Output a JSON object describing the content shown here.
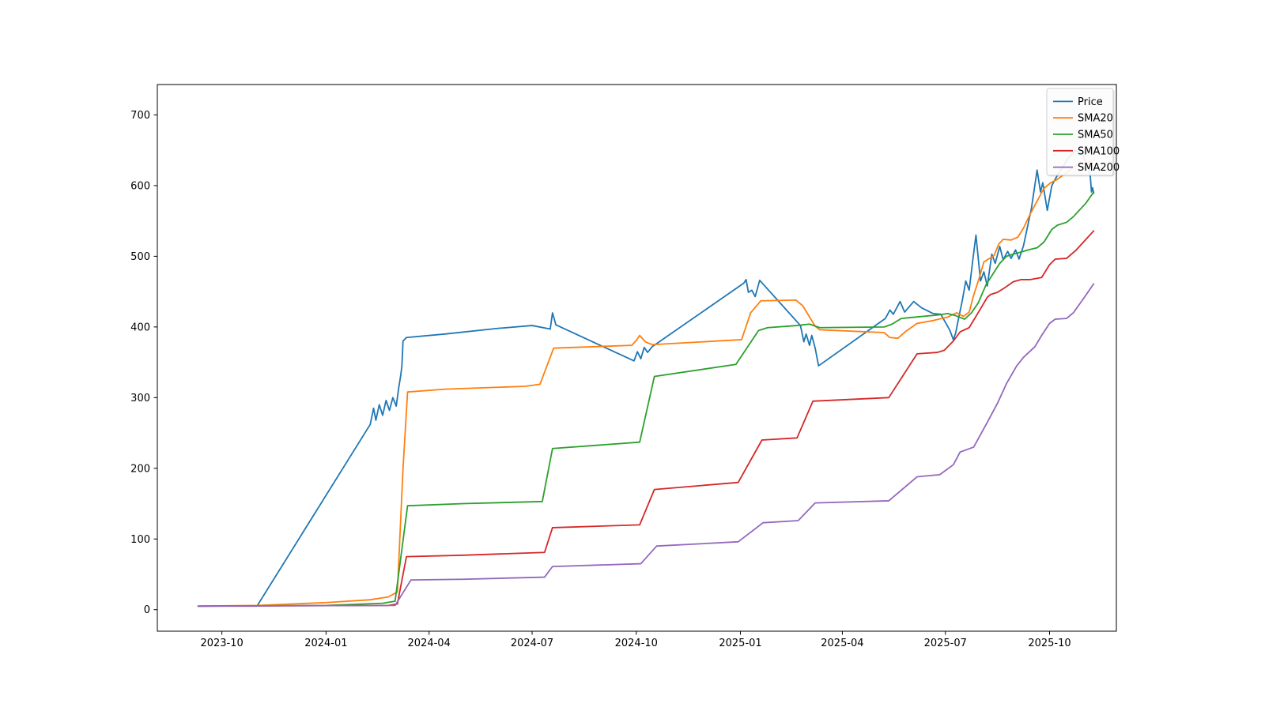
{
  "figure": {
    "background": "#ffffff",
    "spine_color": "#000000",
    "tick_color": "#000000",
    "tick_label_color": "#000000"
  },
  "chart_data": {
    "type": "line",
    "title": "",
    "xlabel": "",
    "ylabel": "",
    "grid": false,
    "xlim": [
      "2023-08-05",
      "2025-11-29"
    ],
    "ylim": [
      -30.5,
      743
    ],
    "x_ticks": [
      {
        "date": "2023-10-01",
        "label": "2023-10"
      },
      {
        "date": "2024-01-01",
        "label": "2024-01"
      },
      {
        "date": "2024-04-01",
        "label": "2024-04"
      },
      {
        "date": "2024-07-01",
        "label": "2024-07"
      },
      {
        "date": "2024-10-01",
        "label": "2024-10"
      },
      {
        "date": "2025-01-01",
        "label": "2025-01"
      },
      {
        "date": "2025-04-01",
        "label": "2025-04"
      },
      {
        "date": "2025-07-01",
        "label": "2025-07"
      },
      {
        "date": "2025-10-01",
        "label": "2025-10"
      }
    ],
    "y_ticks": [
      {
        "value": 0,
        "label": "0"
      },
      {
        "value": 100,
        "label": "100"
      },
      {
        "value": 200,
        "label": "200"
      },
      {
        "value": 300,
        "label": "300"
      },
      {
        "value": 400,
        "label": "400"
      },
      {
        "value": 500,
        "label": "500"
      },
      {
        "value": 600,
        "label": "600"
      },
      {
        "value": 700,
        "label": "700"
      }
    ],
    "legend": {
      "position": "upper right",
      "entries": [
        {
          "label": "Price",
          "color": "#1f77b4"
        },
        {
          "label": "SMA20",
          "color": "#ff7f0e"
        },
        {
          "label": "SMA50",
          "color": "#2ca02c"
        },
        {
          "label": "SMA100",
          "color": "#d62728"
        },
        {
          "label": "SMA200",
          "color": "#9467bd"
        }
      ]
    },
    "series": [
      {
        "name": "Price",
        "color": "#1f77b4",
        "points": [
          [
            "2023-09-10",
            5
          ],
          [
            "2023-11-01",
            5
          ],
          [
            "2024-02-09",
            262
          ],
          [
            "2024-02-12",
            285
          ],
          [
            "2024-02-14",
            268
          ],
          [
            "2024-02-17",
            290
          ],
          [
            "2024-02-20",
            275
          ],
          [
            "2024-02-23",
            296
          ],
          [
            "2024-02-26",
            282
          ],
          [
            "2024-02-29",
            300
          ],
          [
            "2024-03-03",
            288
          ],
          [
            "2024-03-05",
            312
          ],
          [
            "2024-03-07",
            332
          ],
          [
            "2024-03-08",
            345
          ],
          [
            "2024-03-09",
            380
          ],
          [
            "2024-03-12",
            385
          ],
          [
            "2024-04-15",
            390
          ],
          [
            "2024-06-01",
            398
          ],
          [
            "2024-07-01",
            402
          ],
          [
            "2024-07-17",
            397
          ],
          [
            "2024-07-19",
            420
          ],
          [
            "2024-07-22",
            403
          ],
          [
            "2024-09-29",
            352
          ],
          [
            "2024-10-02",
            365
          ],
          [
            "2024-10-05",
            355
          ],
          [
            "2024-10-08",
            371
          ],
          [
            "2024-10-11",
            364
          ],
          [
            "2024-10-15",
            372
          ],
          [
            "2025-01-04",
            462
          ],
          [
            "2025-01-06",
            467
          ],
          [
            "2025-01-08",
            449
          ],
          [
            "2025-01-11",
            452
          ],
          [
            "2025-01-14",
            443
          ],
          [
            "2025-01-18",
            466
          ],
          [
            "2025-02-23",
            402
          ],
          [
            "2025-02-26",
            379
          ],
          [
            "2025-02-28",
            390
          ],
          [
            "2025-03-03",
            374
          ],
          [
            "2025-03-05",
            388
          ],
          [
            "2025-03-08",
            370
          ],
          [
            "2025-03-11",
            345
          ],
          [
            "2025-05-09",
            412
          ],
          [
            "2025-05-13",
            424
          ],
          [
            "2025-05-16",
            418
          ],
          [
            "2025-05-22",
            436
          ],
          [
            "2025-05-26",
            421
          ],
          [
            "2025-06-03",
            436
          ],
          [
            "2025-06-10",
            427
          ],
          [
            "2025-06-20",
            419
          ],
          [
            "2025-06-27",
            418
          ],
          [
            "2025-07-05",
            395
          ],
          [
            "2025-07-08",
            382
          ],
          [
            "2025-07-10",
            391
          ],
          [
            "2025-07-13",
            415
          ],
          [
            "2025-07-16",
            438
          ],
          [
            "2025-07-19",
            465
          ],
          [
            "2025-07-22",
            452
          ],
          [
            "2025-07-25",
            492
          ],
          [
            "2025-07-28",
            530
          ],
          [
            "2025-08-01",
            465
          ],
          [
            "2025-08-04",
            478
          ],
          [
            "2025-08-07",
            458
          ],
          [
            "2025-08-11",
            503
          ],
          [
            "2025-08-14",
            490
          ],
          [
            "2025-08-18",
            514
          ],
          [
            "2025-08-21",
            495
          ],
          [
            "2025-08-25",
            507
          ],
          [
            "2025-08-28",
            497
          ],
          [
            "2025-09-01",
            509
          ],
          [
            "2025-09-04",
            496
          ],
          [
            "2025-09-08",
            515
          ],
          [
            "2025-09-15",
            568
          ],
          [
            "2025-09-20",
            622
          ],
          [
            "2025-09-23",
            591
          ],
          [
            "2025-09-25",
            604
          ],
          [
            "2025-09-29",
            565
          ],
          [
            "2025-10-03",
            600
          ],
          [
            "2025-10-07",
            612
          ],
          [
            "2025-10-12",
            625
          ],
          [
            "2025-10-18",
            640
          ],
          [
            "2025-10-24",
            650
          ],
          [
            "2025-10-30",
            645
          ],
          [
            "2025-11-04",
            625
          ],
          [
            "2025-11-06",
            613
          ],
          [
            "2025-11-07",
            591
          ],
          [
            "2025-11-08",
            597
          ],
          [
            "2025-11-09",
            589
          ]
        ]
      },
      {
        "name": "SMA20",
        "color": "#ff7f0e",
        "points": [
          [
            "2023-09-10",
            5
          ],
          [
            "2023-11-01",
            6
          ],
          [
            "2024-01-01",
            10
          ],
          [
            "2024-02-09",
            14
          ],
          [
            "2024-02-25",
            18
          ],
          [
            "2024-03-04",
            25
          ],
          [
            "2024-03-09",
            200
          ],
          [
            "2024-03-13",
            308
          ],
          [
            "2024-04-15",
            312
          ],
          [
            "2024-06-25",
            316
          ],
          [
            "2024-07-08",
            319
          ],
          [
            "2024-07-20",
            370
          ],
          [
            "2024-09-27",
            374
          ],
          [
            "2024-10-01",
            381
          ],
          [
            "2024-10-04",
            388
          ],
          [
            "2024-10-09",
            379
          ],
          [
            "2024-10-15",
            375
          ],
          [
            "2025-01-02",
            382
          ],
          [
            "2025-01-10",
            420
          ],
          [
            "2025-01-19",
            437
          ],
          [
            "2025-02-19",
            438
          ],
          [
            "2025-02-25",
            430
          ],
          [
            "2025-03-08",
            401
          ],
          [
            "2025-03-12",
            396
          ],
          [
            "2025-05-08",
            392
          ],
          [
            "2025-05-13",
            385
          ],
          [
            "2025-05-20",
            384
          ],
          [
            "2025-05-28",
            395
          ],
          [
            "2025-06-06",
            405
          ],
          [
            "2025-06-20",
            409
          ],
          [
            "2025-07-03",
            414
          ],
          [
            "2025-07-11",
            420
          ],
          [
            "2025-07-17",
            415
          ],
          [
            "2025-07-22",
            421
          ],
          [
            "2025-07-26",
            445
          ],
          [
            "2025-07-31",
            470
          ],
          [
            "2025-08-04",
            492
          ],
          [
            "2025-08-09",
            497
          ],
          [
            "2025-08-13",
            501
          ],
          [
            "2025-08-17",
            517
          ],
          [
            "2025-08-21",
            524
          ],
          [
            "2025-08-28",
            523
          ],
          [
            "2025-09-03",
            527
          ],
          [
            "2025-09-08",
            540
          ],
          [
            "2025-09-14",
            560
          ],
          [
            "2025-09-20",
            578
          ],
          [
            "2025-09-26",
            596
          ],
          [
            "2025-10-02",
            604
          ],
          [
            "2025-10-07",
            608
          ],
          [
            "2025-10-14",
            616
          ],
          [
            "2025-10-24",
            628
          ],
          [
            "2025-11-09",
            636
          ]
        ]
      },
      {
        "name": "SMA50",
        "color": "#2ca02c",
        "points": [
          [
            "2023-09-10",
            5
          ],
          [
            "2024-01-01",
            6
          ],
          [
            "2024-02-20",
            9
          ],
          [
            "2024-03-02",
            12
          ],
          [
            "2024-03-13",
            147
          ],
          [
            "2024-05-01",
            150
          ],
          [
            "2024-07-10",
            153
          ],
          [
            "2024-07-19",
            228
          ],
          [
            "2024-10-04",
            237
          ],
          [
            "2024-10-17",
            330
          ],
          [
            "2024-12-28",
            347
          ],
          [
            "2025-01-17",
            395
          ],
          [
            "2025-01-25",
            399
          ],
          [
            "2025-02-20",
            402
          ],
          [
            "2025-03-03",
            404
          ],
          [
            "2025-03-12",
            399
          ],
          [
            "2025-05-08",
            400
          ],
          [
            "2025-05-15",
            404
          ],
          [
            "2025-05-23",
            412
          ],
          [
            "2025-06-05",
            414
          ],
          [
            "2025-06-25",
            417
          ],
          [
            "2025-07-03",
            419
          ],
          [
            "2025-07-10",
            416
          ],
          [
            "2025-07-18",
            411
          ],
          [
            "2025-07-24",
            420
          ],
          [
            "2025-07-30",
            434
          ],
          [
            "2025-08-06",
            460
          ],
          [
            "2025-08-12",
            475
          ],
          [
            "2025-08-18",
            490
          ],
          [
            "2025-08-24",
            500
          ],
          [
            "2025-08-30",
            503
          ],
          [
            "2025-09-06",
            506
          ],
          [
            "2025-09-12",
            509
          ],
          [
            "2025-09-20",
            512
          ],
          [
            "2025-09-26",
            520
          ],
          [
            "2025-10-03",
            538
          ],
          [
            "2025-10-08",
            544
          ],
          [
            "2025-10-16",
            548
          ],
          [
            "2025-10-22",
            556
          ],
          [
            "2025-11-02",
            575
          ],
          [
            "2025-11-09",
            591
          ]
        ]
      },
      {
        "name": "SMA100",
        "color": "#d62728",
        "points": [
          [
            "2023-09-10",
            5
          ],
          [
            "2024-02-25",
            6
          ],
          [
            "2024-03-04",
            8
          ],
          [
            "2024-03-12",
            75
          ],
          [
            "2024-05-01",
            77
          ],
          [
            "2024-07-12",
            81
          ],
          [
            "2024-07-19",
            116
          ],
          [
            "2024-10-04",
            120
          ],
          [
            "2024-10-17",
            170
          ],
          [
            "2024-12-30",
            180
          ],
          [
            "2025-01-20",
            240
          ],
          [
            "2025-02-20",
            243
          ],
          [
            "2025-03-06",
            295
          ],
          [
            "2025-05-12",
            300
          ],
          [
            "2025-06-06",
            362
          ],
          [
            "2025-06-24",
            364
          ],
          [
            "2025-06-30",
            367
          ],
          [
            "2025-07-08",
            380
          ],
          [
            "2025-07-14",
            393
          ],
          [
            "2025-07-22",
            399
          ],
          [
            "2025-07-31",
            423
          ],
          [
            "2025-08-07",
            442
          ],
          [
            "2025-08-10",
            446
          ],
          [
            "2025-08-16",
            449
          ],
          [
            "2025-08-22",
            455
          ],
          [
            "2025-08-30",
            464
          ],
          [
            "2025-09-06",
            467
          ],
          [
            "2025-09-14",
            467
          ],
          [
            "2025-09-24",
            470
          ],
          [
            "2025-10-01",
            488
          ],
          [
            "2025-10-06",
            496
          ],
          [
            "2025-10-16",
            497
          ],
          [
            "2025-10-24",
            508
          ],
          [
            "2025-11-01",
            522
          ],
          [
            "2025-11-09",
            536
          ]
        ]
      },
      {
        "name": "SMA200",
        "color": "#9467bd",
        "points": [
          [
            "2023-09-10",
            5
          ],
          [
            "2024-03-02",
            6
          ],
          [
            "2024-03-16",
            42
          ],
          [
            "2024-05-01",
            43
          ],
          [
            "2024-07-12",
            46
          ],
          [
            "2024-07-19",
            61
          ],
          [
            "2024-10-05",
            65
          ],
          [
            "2024-10-19",
            90
          ],
          [
            "2024-12-30",
            96
          ],
          [
            "2025-01-21",
            123
          ],
          [
            "2025-02-21",
            126
          ],
          [
            "2025-03-08",
            151
          ],
          [
            "2025-05-12",
            154
          ],
          [
            "2025-06-06",
            188
          ],
          [
            "2025-06-26",
            191
          ],
          [
            "2025-07-08",
            205
          ],
          [
            "2025-07-14",
            223
          ],
          [
            "2025-07-26",
            230
          ],
          [
            "2025-08-08",
            268
          ],
          [
            "2025-08-16",
            292
          ],
          [
            "2025-08-24",
            320
          ],
          [
            "2025-09-02",
            345
          ],
          [
            "2025-09-08",
            357
          ],
          [
            "2025-09-12",
            363
          ],
          [
            "2025-09-18",
            372
          ],
          [
            "2025-09-24",
            388
          ],
          [
            "2025-10-01",
            405
          ],
          [
            "2025-10-06",
            411
          ],
          [
            "2025-10-16",
            412
          ],
          [
            "2025-10-22",
            420
          ],
          [
            "2025-10-30",
            438
          ],
          [
            "2025-11-09",
            461
          ]
        ]
      }
    ]
  }
}
